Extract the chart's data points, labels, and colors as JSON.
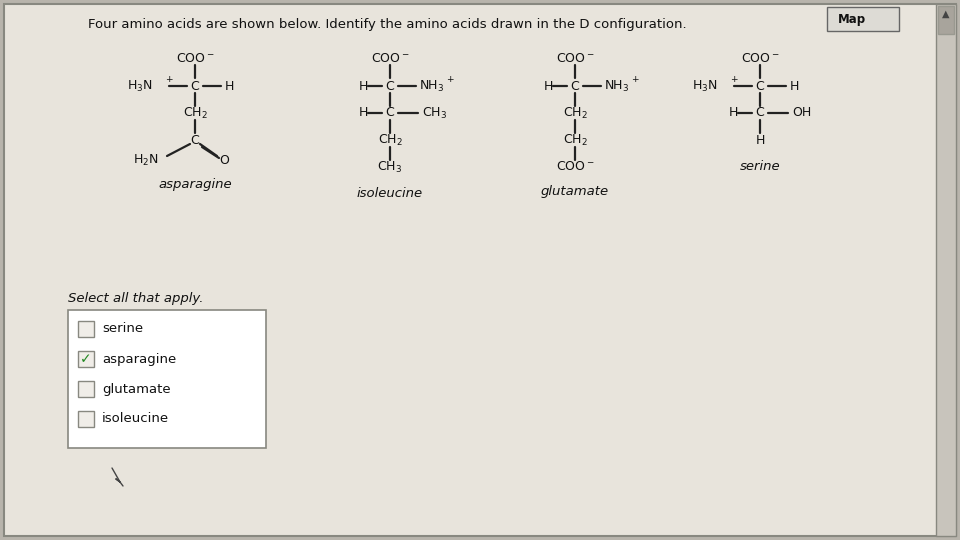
{
  "title": "Four amino acids are shown below. Identify the amino acids drawn in the D configuration.",
  "bg_outer": "#b8b4ac",
  "bg_inner": "#e8e4dc",
  "amino_acids": [
    "asparagine",
    "isoleucine",
    "glutamate",
    "serine"
  ],
  "checkbox_items": [
    "serine",
    "asparagine",
    "glutamate",
    "isoleucine"
  ],
  "checked_item": "asparagine",
  "select_text": "Select all that apply.",
  "map_text": "Map",
  "line_color": "#222222",
  "text_color": "#111111"
}
